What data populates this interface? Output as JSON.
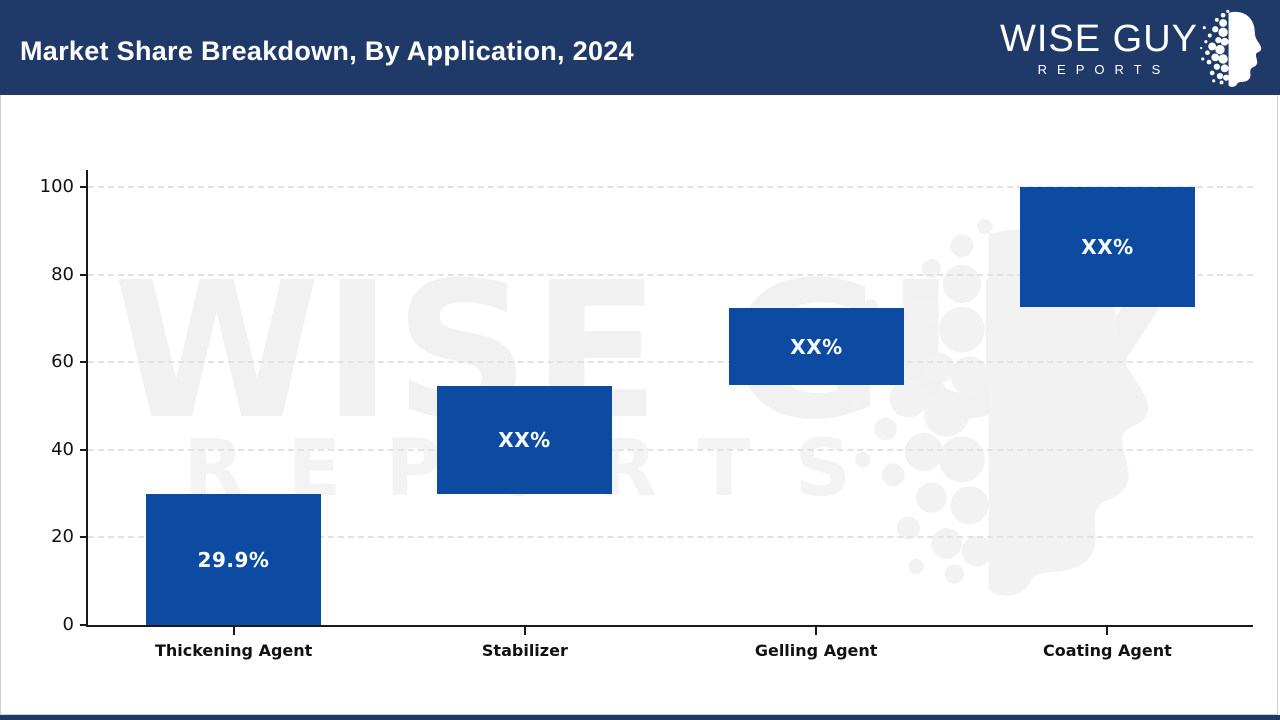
{
  "header": {
    "title": "Market Share Breakdown, By Application, 2024",
    "logo": {
      "line1": "WISE GUY",
      "line2": "REPORTS"
    }
  },
  "watermark": {
    "text1": "WISE GUY",
    "text2": "REPORTS"
  },
  "colors": {
    "header_bg": "#1f3a68",
    "bar": "#0d4ba3",
    "grid": "#e2e2e2",
    "axis": "#1a1a1a",
    "bar_label": "#ffffff",
    "watermark": "#f1f1f1",
    "footer": "#1f3a68"
  },
  "chart_data": {
    "type": "bar",
    "subtype": "waterfall",
    "title": "Market Share Breakdown, By Application, 2024",
    "categories": [
      "Thickening Agent",
      "Stabilizer",
      "Gelling Agent",
      "Coating Agent"
    ],
    "bars": [
      {
        "category": "Thickening Agent",
        "start": 0,
        "end": 29.9,
        "label": "29.9%"
      },
      {
        "category": "Stabilizer",
        "start": 29.9,
        "end": 54.6,
        "label": "XX%"
      },
      {
        "category": "Gelling Agent",
        "start": 54.9,
        "end": 72.4,
        "label": "XX%"
      },
      {
        "category": "Coating Agent",
        "start": 72.5,
        "end": 100,
        "label": "XX%"
      }
    ],
    "xlabel": "",
    "ylabel": "",
    "ylim": [
      0,
      100
    ],
    "yticks": [
      0,
      20,
      40,
      60,
      80,
      100
    ],
    "grid": "horizontal-dashed",
    "legend": "none"
  }
}
